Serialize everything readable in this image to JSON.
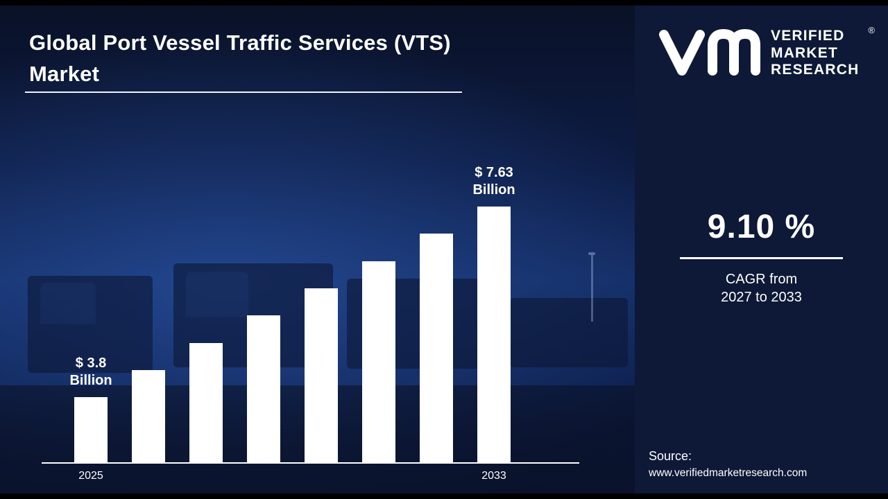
{
  "header": {
    "title": "Global Port Vessel Traffic Services (VTS) Market"
  },
  "chart_data": {
    "type": "bar",
    "categories": [
      "2025",
      "",
      "",
      "",
      "",
      "",
      "",
      "2033"
    ],
    "values": [
      3.8,
      4.35,
      4.89,
      5.44,
      5.98,
      6.53,
      7.08,
      7.63
    ],
    "annotations": [
      {
        "index": 0,
        "line1": "$ 3.8",
        "line2": "Billion"
      },
      {
        "index": 7,
        "line1": "$ 7.63",
        "line2": "Billion"
      }
    ],
    "title": "Global Port Vessel Traffic Services (VTS) Market",
    "xlabel": "",
    "ylabel": "",
    "ylim": [
      0,
      8
    ],
    "grid": false,
    "bar_color": "#ffffff",
    "legend": "none"
  },
  "side_panel": {
    "logo_text": [
      "VERIFIED",
      "MARKET",
      "RESEARCH"
    ],
    "registered_mark": "®",
    "cagr_value": "9.10 %",
    "cagr_caption_line1": "CAGR from",
    "cagr_caption_line2": "2027 to 2033",
    "source_label": "Source:",
    "source_url": "www.verifiedmarketresearch.com"
  },
  "colors": {
    "bar": "#ffffff",
    "panel_bg": "#0d1936",
    "left_bg_dark": "#0a1126",
    "left_bg_mid": "#142d64",
    "text": "#ffffff",
    "strip": "#000000"
  }
}
